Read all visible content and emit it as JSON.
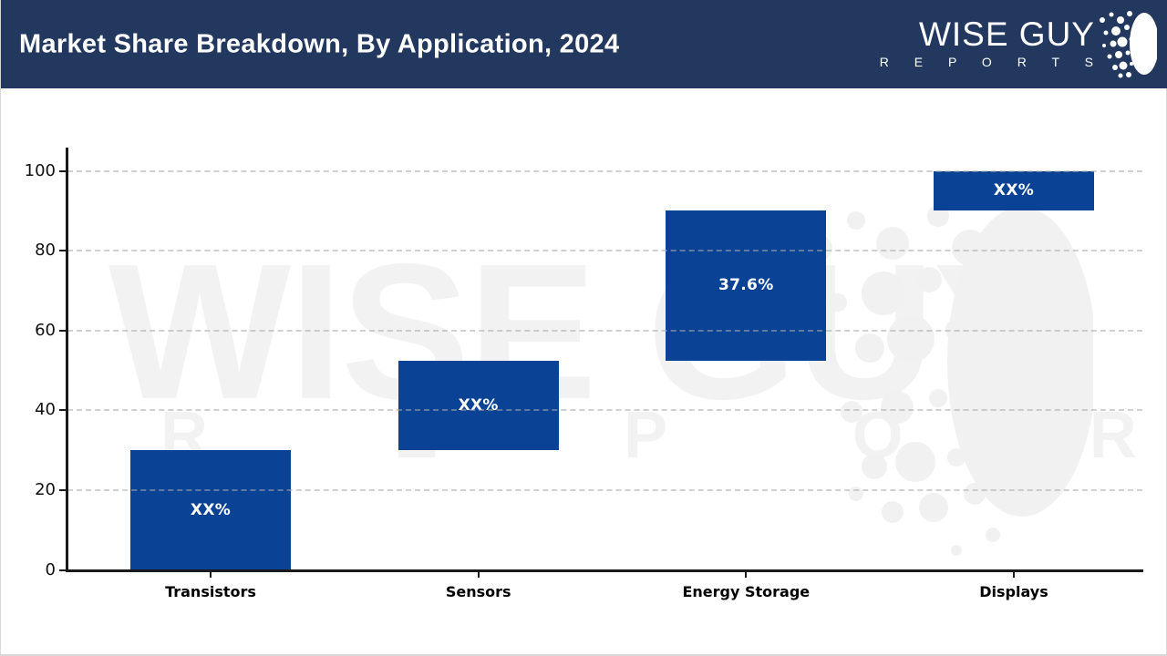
{
  "header": {
    "title": "Market Share Breakdown, By Application, 2024",
    "logo": {
      "primary": "WISE GUY",
      "secondary": "R E P O R T S"
    }
  },
  "watermark": {
    "primary": "WISE GUY",
    "secondary": "R E P O R T S"
  },
  "chart_data": {
    "type": "bar",
    "subtype": "floating-waterfall",
    "title": "Market Share Breakdown, By Application, 2024",
    "categories": [
      "Transistors",
      "Sensors",
      "Energy Storage",
      "Displays"
    ],
    "segments": [
      {
        "category": "Transistors",
        "start": 0,
        "end": 30,
        "label": "XX%"
      },
      {
        "category": "Sensors",
        "start": 30,
        "end": 52.5,
        "label": "XX%"
      },
      {
        "category": "Energy Storage",
        "start": 52.5,
        "end": 90.1,
        "label": "37.6%"
      },
      {
        "category": "Displays",
        "start": 90.1,
        "end": 100,
        "label": "XX%"
      }
    ],
    "yticks": [
      0,
      20,
      40,
      60,
      80,
      100
    ],
    "ylim": [
      0,
      105
    ],
    "xlabel": "",
    "ylabel": "",
    "grid": {
      "horizontal": true,
      "style": "dashed"
    },
    "legend": "none",
    "colors": {
      "bar": "#0a4296",
      "bar_label": "#ffffff",
      "axis": "#1a1a1a",
      "grid_dash": "#aaaaaa",
      "tick_label": "#111111",
      "header_bg": "#22385f",
      "header_text": "#ffffff",
      "watermark": "#f1f1f1",
      "background": "#ffffff"
    }
  }
}
